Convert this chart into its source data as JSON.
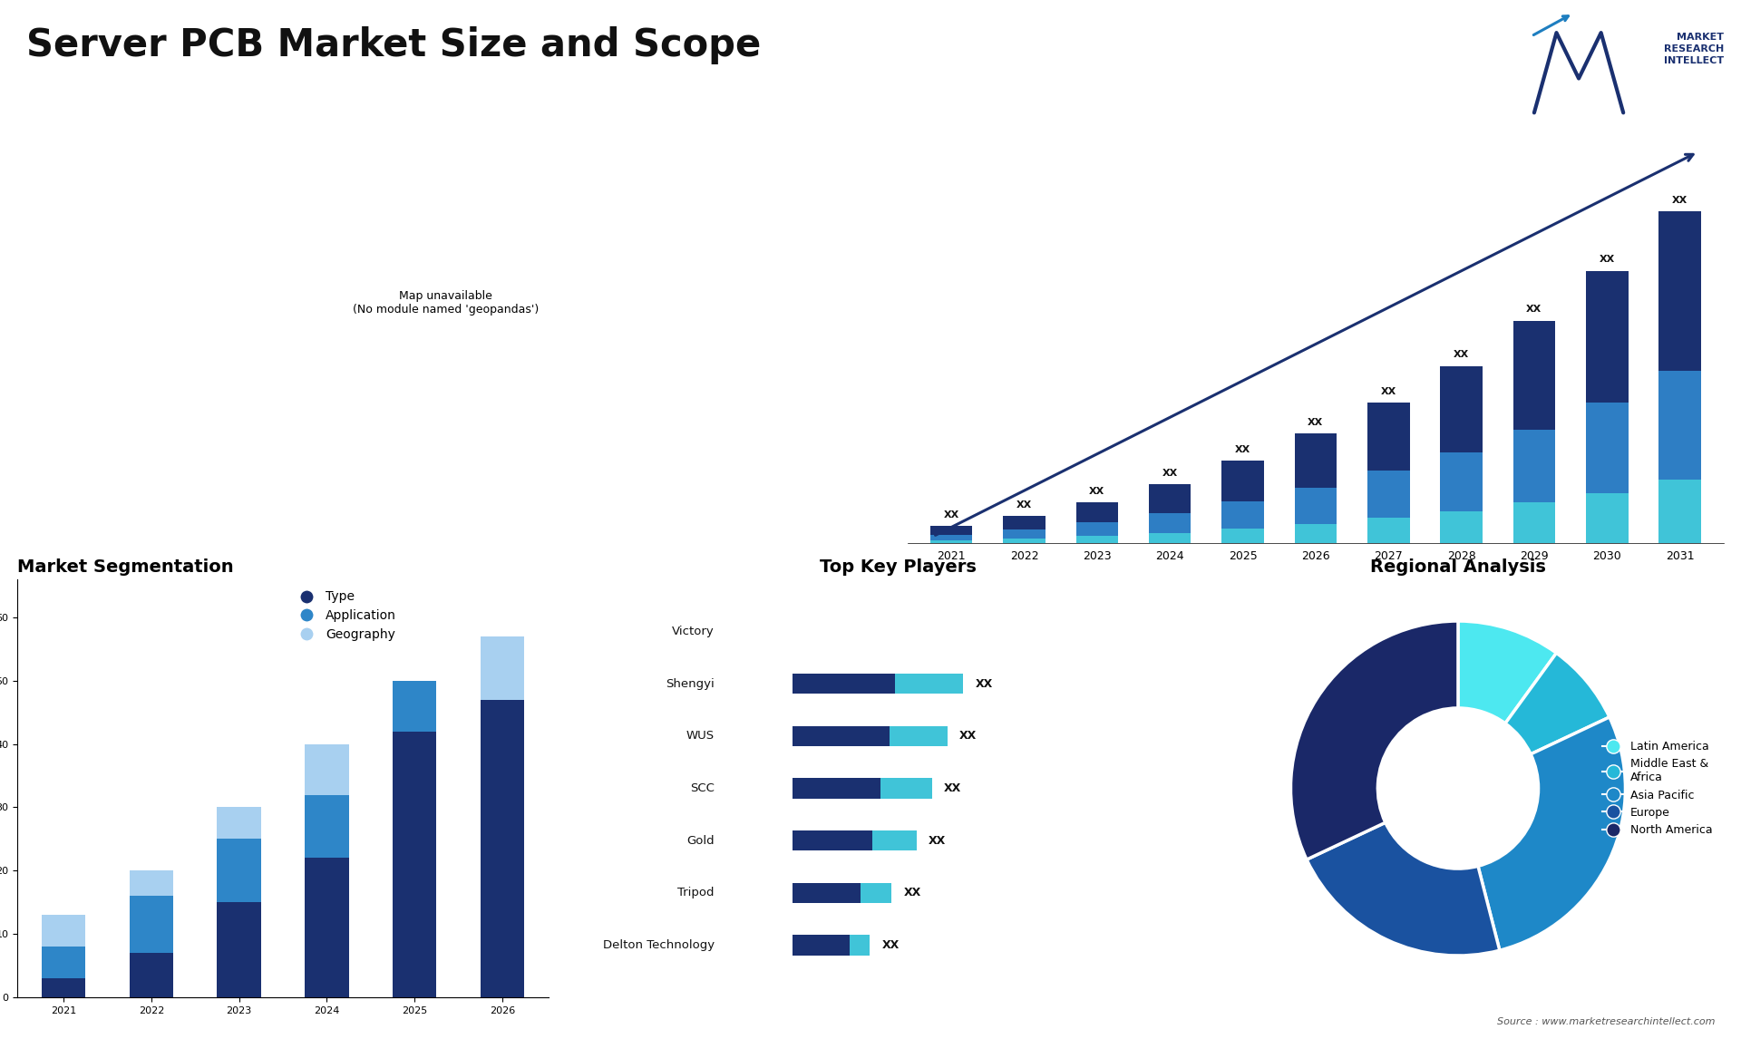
{
  "title": "Server PCB Market Size and Scope",
  "title_fontsize": 30,
  "bg": "#ffffff",
  "bar_years": [
    "2021",
    "2022",
    "2023",
    "2024",
    "2025",
    "2026",
    "2027",
    "2028",
    "2029",
    "2030",
    "2031"
  ],
  "bar_s1": [
    1.0,
    1.5,
    2.2,
    3.2,
    4.5,
    6.0,
    7.5,
    9.5,
    12.0,
    14.5,
    17.5
  ],
  "bar_s2": [
    0.6,
    1.0,
    1.5,
    2.2,
    3.0,
    4.0,
    5.2,
    6.5,
    8.0,
    10.0,
    12.0
  ],
  "bar_s3": [
    0.3,
    0.5,
    0.8,
    1.1,
    1.6,
    2.1,
    2.8,
    3.5,
    4.5,
    5.5,
    7.0
  ],
  "bar_color_dark": "#1a3070",
  "bar_color_mid": "#2e7ec4",
  "bar_color_light": "#40c4d8",
  "trend_color": "#1a3070",
  "seg_years": [
    "2021",
    "2022",
    "2023",
    "2024",
    "2025",
    "2026"
  ],
  "seg_type": [
    3,
    7,
    15,
    22,
    42,
    47
  ],
  "seg_app": [
    5,
    9,
    10,
    10,
    8,
    0
  ],
  "seg_geo": [
    5,
    4,
    5,
    8,
    0,
    10
  ],
  "seg_color_type": "#1a3070",
  "seg_color_app": "#2e86c8",
  "seg_color_geo": "#a8d0f0",
  "seg_title": "Market Segmentation",
  "seg_legend_labels": [
    "Type",
    "Application",
    "Geography"
  ],
  "players": [
    "Victory",
    "Shengyi",
    "WUS",
    "SCC",
    "Gold",
    "Tripod",
    "Delton Technology"
  ],
  "pv_dark": [
    0.0,
    7.2,
    6.8,
    6.2,
    5.6,
    4.8,
    4.0
  ],
  "pv_light": [
    0.0,
    5.5,
    5.0,
    4.5,
    4.0,
    3.2,
    2.5
  ],
  "player_color_dark": "#1a3070",
  "player_color_light": "#40c4d8",
  "players_title": "Top Key Players",
  "pie_values": [
    10,
    8,
    28,
    22,
    32
  ],
  "pie_colors": [
    "#4de8f0",
    "#25b8d8",
    "#1e88c8",
    "#1a52a0",
    "#1a2868"
  ],
  "pie_labels": [
    "Latin America",
    "Middle East &\nAfrica",
    "Asia Pacific",
    "Europe",
    "North America"
  ],
  "pie_title": "Regional Analysis",
  "source": "Source : www.marketresearchintellect.com"
}
